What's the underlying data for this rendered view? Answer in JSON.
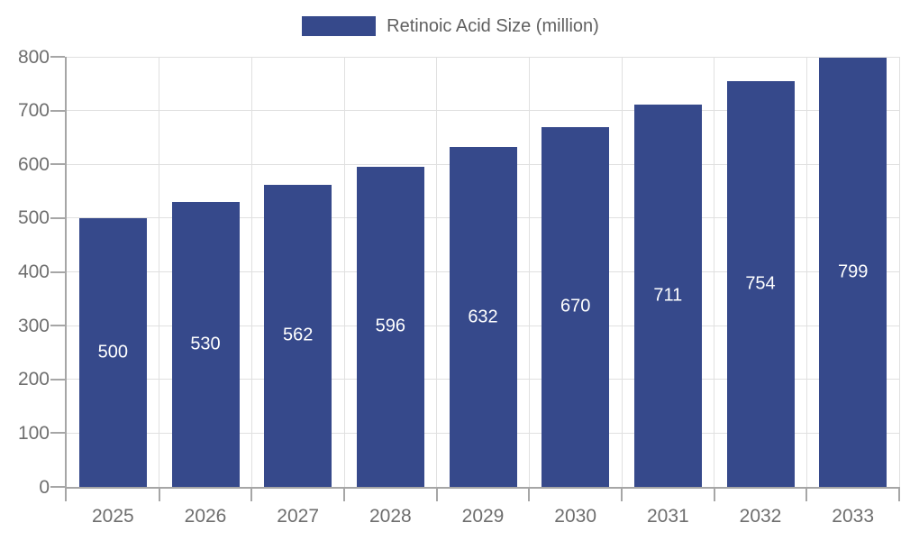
{
  "chart_data": {
    "type": "bar",
    "title": "",
    "legend": "Retinoic Acid Size (million)",
    "categories": [
      "2025",
      "2026",
      "2027",
      "2028",
      "2029",
      "2030",
      "2031",
      "2032",
      "2033"
    ],
    "values": [
      500,
      530,
      562,
      596,
      632,
      670,
      711,
      754,
      799
    ],
    "xlabel": "",
    "ylabel": "",
    "ylim": [
      0,
      800
    ],
    "y_ticks": [
      0,
      100,
      200,
      300,
      400,
      500,
      600,
      700,
      800
    ],
    "grid": true,
    "legend_position": "top-center",
    "colors": {
      "bar": "#36498B",
      "grid": "#E0E0E0",
      "axis": "#A6A6A6",
      "tick_label": "#6E6E6E",
      "legend_text": "#606060",
      "value_label": "#FFFFFF",
      "background": "#FFFFFF"
    }
  }
}
